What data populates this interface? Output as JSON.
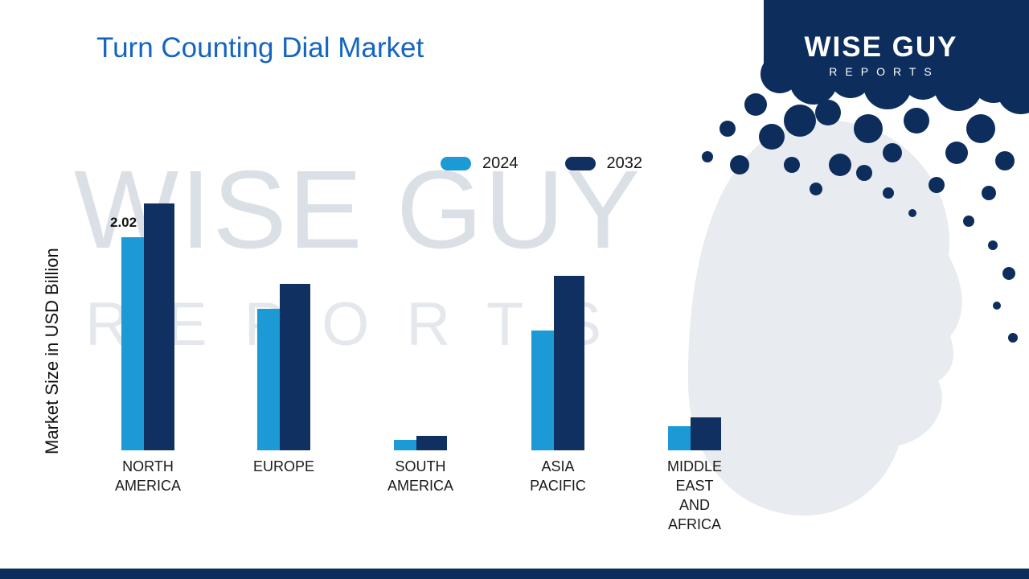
{
  "page": {
    "title": "Turn Counting Dial Market"
  },
  "logo": {
    "line1": "WISE GUY",
    "line2": "REPORTS"
  },
  "watermark": {
    "line1": "WISE GUY",
    "line2": "REPORTS"
  },
  "colors": {
    "accent_2024": "#1b9ad6",
    "navy_2032": "#0f3060",
    "title_blue": "#1565c0",
    "footer_navy": "#0d2d5c",
    "watermark_gray": "#dbe0e6",
    "head_silhouette_gray": "#e8ebef"
  },
  "chart_data": {
    "type": "bar",
    "title": "Turn Counting Dial Market",
    "xlabel": "",
    "ylabel": "Market Size in USD Billion",
    "ylim": [
      0,
      2.5
    ],
    "grid": false,
    "legend_position": "top",
    "categories": [
      [
        "NORTH",
        "AMERICA"
      ],
      [
        "EUROPE"
      ],
      [
        "SOUTH",
        "AMERICA"
      ],
      [
        "ASIA",
        "PACIFIC"
      ],
      [
        "MIDDLE",
        "EAST",
        "AND",
        "AFRICA"
      ]
    ],
    "series": [
      {
        "name": "2024",
        "color": "#1b9ad6",
        "values": [
          2.02,
          1.34,
          0.1,
          1.14,
          0.23
        ]
      },
      {
        "name": "2032",
        "color": "#0f3060",
        "values": [
          2.34,
          1.58,
          0.14,
          1.66,
          0.31
        ]
      }
    ],
    "data_labels": [
      {
        "series": "2024",
        "category_index": 0,
        "text": "2.02"
      }
    ]
  }
}
